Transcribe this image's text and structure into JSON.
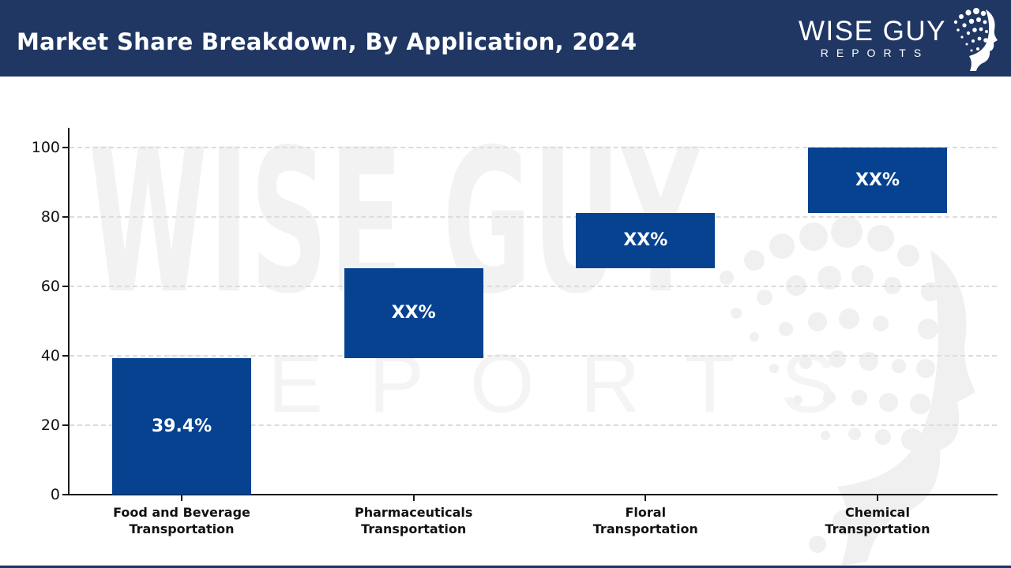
{
  "header": {
    "title": "Market Share Breakdown, By Application, 2024",
    "logo_line1": "WISE GUY",
    "logo_line2": "REPORTS"
  },
  "watermark": {
    "line1": "WISE GUY",
    "line2": "REPORTS"
  },
  "colors": {
    "header_bg": "#203763",
    "bar": "#064290",
    "bar_label_text": "#ffffff",
    "gridline": "#dcdcdc",
    "axis": "#1a1a1a",
    "watermark": "#f2f2f2"
  },
  "chart_data": {
    "type": "bar",
    "subtype": "waterfall",
    "title": "Market Share Breakdown, By Application, 2024",
    "xlabel": "",
    "ylabel": "",
    "ylim": [
      0,
      105
    ],
    "yticks": [
      0,
      20,
      40,
      60,
      80,
      100
    ],
    "grid": "horizontal-dashed",
    "legend": "none",
    "categories": [
      "Food and Beverage Transportation",
      "Pharmaceuticals Transportation",
      "Floral Transportation",
      "Chemical Transportation"
    ],
    "bars": [
      {
        "category_line1": "Food and Beverage",
        "category_line2": "Transportation",
        "start": 0,
        "end": 39.4,
        "label": "39.4%"
      },
      {
        "category_line1": "Pharmaceuticals",
        "category_line2": "Transportation",
        "start": 39.4,
        "end": 65.2,
        "label": "XX%"
      },
      {
        "category_line1": "Floral",
        "category_line2": "Transportation",
        "start": 65.2,
        "end": 81.2,
        "label": "XX%"
      },
      {
        "category_line1": "Chemical",
        "category_line2": "Transportation",
        "start": 81.2,
        "end": 100.0,
        "label": "XX%"
      }
    ]
  }
}
